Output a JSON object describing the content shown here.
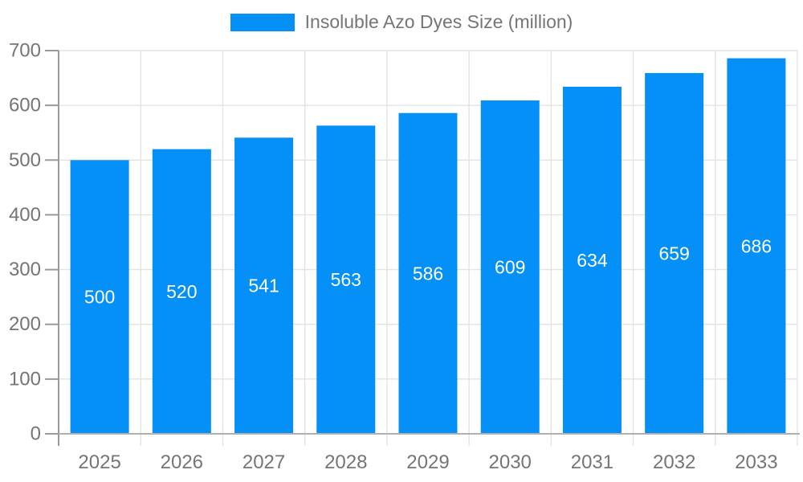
{
  "chart_data": {
    "type": "bar",
    "title": "Insoluble Azo Dyes Size (million)",
    "categories": [
      "2025",
      "2026",
      "2027",
      "2028",
      "2029",
      "2030",
      "2031",
      "2032",
      "2033"
    ],
    "values": [
      500,
      520,
      541,
      563,
      586,
      609,
      634,
      659,
      686
    ],
    "xlabel": "",
    "ylabel": "",
    "ylim": [
      0,
      700
    ],
    "ytick_step": 100,
    "yticks": [
      0,
      100,
      200,
      300,
      400,
      500,
      600,
      700
    ],
    "grid": true,
    "legend_position": "top-center",
    "value_labels": "inside-center",
    "colors": {
      "bar": "#0590f8",
      "axis_label": "#757575",
      "value_label": "#ffffff",
      "grid_line": "#e3e3e3",
      "axis_line": "#9a9a9a",
      "baseline": "#b0b0b0",
      "legend_text": "#757575",
      "background": "#ffffff"
    }
  }
}
